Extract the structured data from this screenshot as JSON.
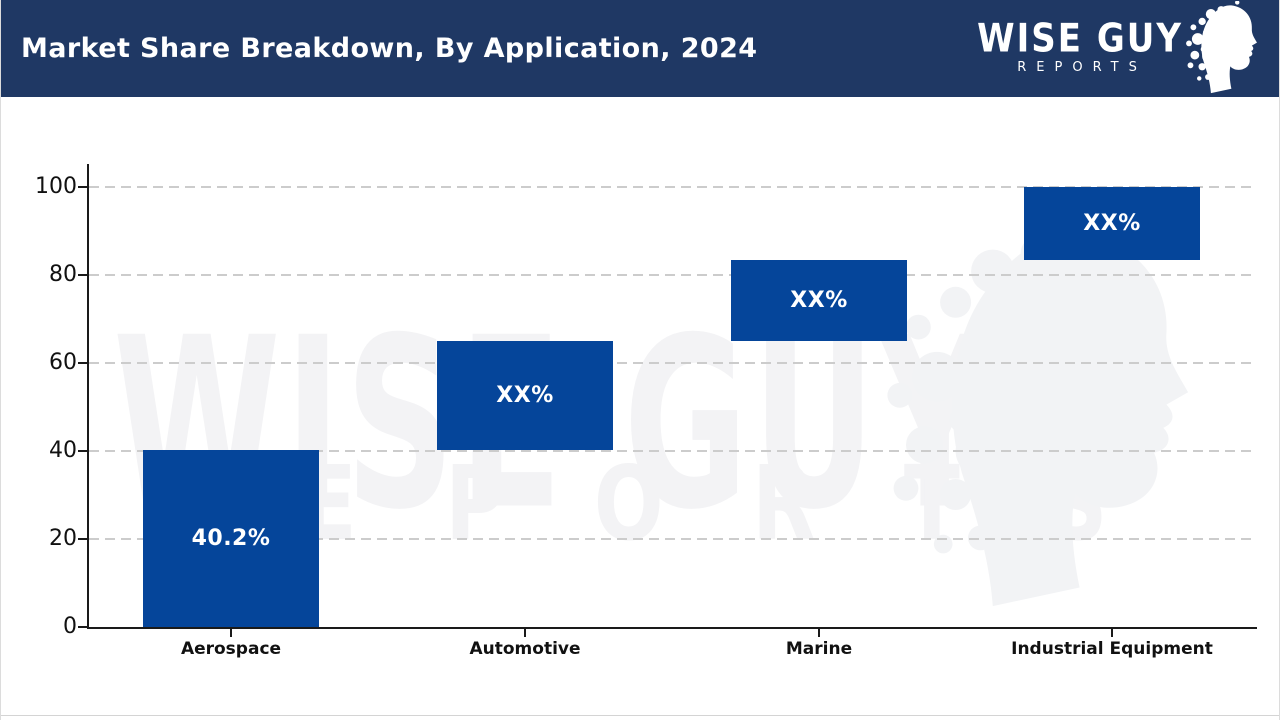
{
  "header": {
    "title": "Market Share Breakdown, By Application, 2024",
    "logo": {
      "name": "WISE GUY",
      "sub": "REPORTS"
    }
  },
  "watermark": {
    "line1": "WISE GUY",
    "line2": "R E P O R T S"
  },
  "chart_data": {
    "type": "bar",
    "variant": "waterfall-stacked-percent",
    "title": "Market Share Breakdown, By Application, 2024",
    "categories": [
      "Aerospace",
      "Automotive",
      "Marine",
      "Industrial Equipment"
    ],
    "segments": [
      {
        "category": "Aerospace",
        "start": 0,
        "end": 40.2,
        "label": "40.2%"
      },
      {
        "category": "Automotive",
        "start": 40.2,
        "end": 65,
        "label": "XX%"
      },
      {
        "category": "Marine",
        "start": 65,
        "end": 83.4,
        "label": "XX%"
      },
      {
        "category": "Industrial Equipment",
        "start": 83.4,
        "end": 100,
        "label": "XX%"
      }
    ],
    "xlabel": "",
    "ylabel": "",
    "ylim": [
      0,
      105
    ],
    "yticks": [
      0,
      20,
      40,
      60,
      80,
      100
    ],
    "grid": "horizontal-dashed",
    "legend": "none",
    "bar_color": "#05459a",
    "bar_label_color": "#ffffff",
    "axis_color": "#1a1a1a",
    "gridline_color": "#cccccc"
  },
  "colors": {
    "header_bg": "#1f3864",
    "page_bg": "#ffffff",
    "watermark": "#f2f3f5"
  }
}
